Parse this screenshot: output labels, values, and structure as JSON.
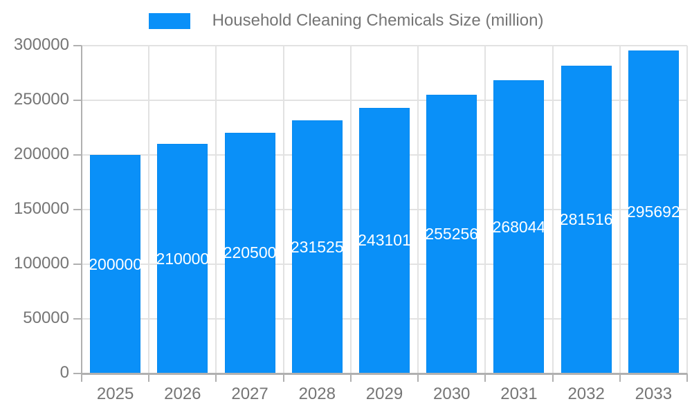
{
  "legend": {
    "series_label": "Household Cleaning Chemicals Size (million)"
  },
  "colors": {
    "bar": "#0a90f8",
    "bar_border": "#0489ef",
    "grid": "#e2e2e2",
    "axis": "#b0b0b0",
    "tick_text": "#757575",
    "title_text": "#757575",
    "bar_label_text": "#ffffff",
    "background": "#ffffff"
  },
  "chart_data": {
    "type": "bar",
    "title": "Household Cleaning Chemicals Size (million)",
    "categories": [
      "2025",
      "2026",
      "2027",
      "2028",
      "2029",
      "2030",
      "2031",
      "2032",
      "2033"
    ],
    "values": [
      200000,
      210000,
      220500,
      231525,
      243101,
      255256,
      268044,
      281516,
      295692
    ],
    "series": [
      {
        "name": "Household Cleaning Chemicals Size (million)",
        "values": [
          200000,
          210000,
          220500,
          231525,
          243101,
          255256,
          268044,
          281516,
          295692
        ]
      }
    ],
    "xlabel": "",
    "ylabel": "",
    "ylim": [
      0,
      300000
    ],
    "ytick_step": 50000,
    "yticks": [
      "0",
      "50000",
      "100000",
      "150000",
      "200000",
      "250000",
      "300000"
    ],
    "grid": true,
    "legend_position": "top-center",
    "bar_value_labels": "inside-center-white"
  }
}
